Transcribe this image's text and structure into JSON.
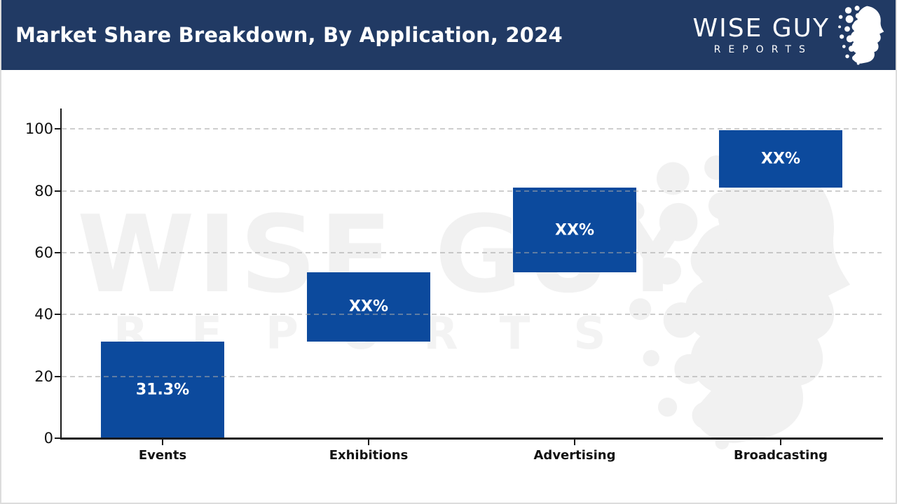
{
  "header": {
    "title": "Market Share Breakdown, By Application, 2024",
    "logo": {
      "line1": "WISE GUY",
      "line2": "REPORTS"
    }
  },
  "watermark": {
    "line1": "WISE GUY",
    "line2": "REPORTS"
  },
  "colors": {
    "header_bg": "#213a64",
    "bar": "#0c4a9d",
    "bar_label_text": "#ffffff",
    "grid": "#a5a5a5",
    "axis": "#1a1a1a",
    "watermark": "#f1f1f1"
  },
  "chart_data": {
    "type": "bar",
    "subtype": "waterfall",
    "title": "Market Share Breakdown, By Application, 2024",
    "xlabel": "",
    "ylabel": "",
    "categories": [
      "Events",
      "Exhibitions",
      "Advertising",
      "Broadcasting"
    ],
    "segments": [
      {
        "category": "Events",
        "start": 0,
        "end": 31.3,
        "label": "31.3%"
      },
      {
        "category": "Exhibitions",
        "start": 31.3,
        "end": 53.6,
        "label": "XX%"
      },
      {
        "category": "Advertising",
        "start": 53.6,
        "end": 81.0,
        "label": "XX%"
      },
      {
        "category": "Broadcasting",
        "start": 81.0,
        "end": 99.6,
        "label": "XX%"
      }
    ],
    "yticks": [
      0,
      20,
      40,
      60,
      80,
      100
    ],
    "ylim": [
      0,
      106
    ],
    "grid": "horizontal dashed, drawn over bars",
    "legend": "none"
  }
}
